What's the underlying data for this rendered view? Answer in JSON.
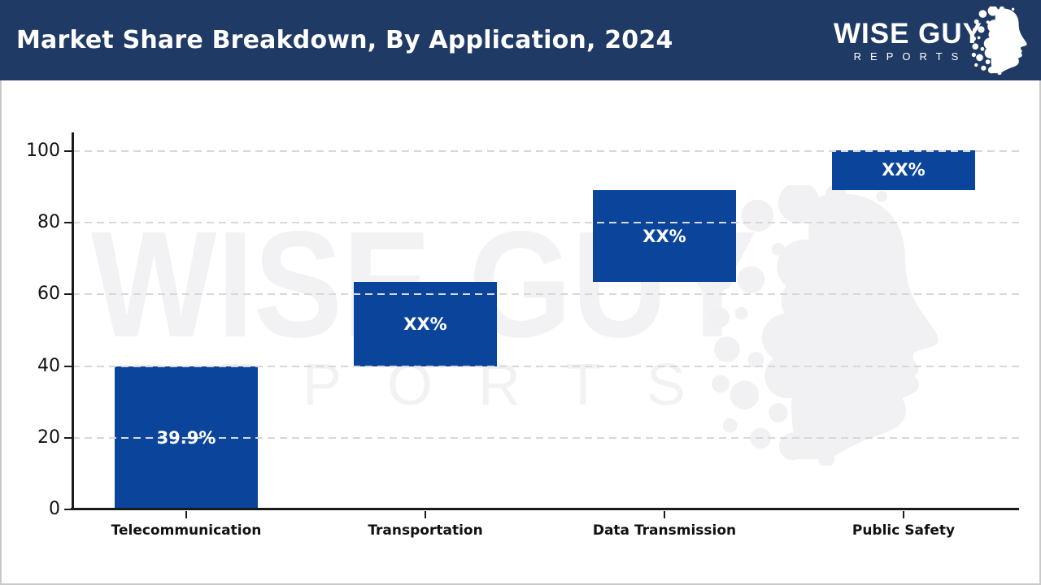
{
  "header": {
    "title": "Market Share Breakdown, By Application, 2024",
    "logo": {
      "line1": "WISE GUY",
      "line2": "REPORTS"
    }
  },
  "watermark": {
    "line1": "WISE GUY",
    "line2": "REPORTS"
  },
  "chart_data": {
    "type": "bar",
    "subtype": "waterfall",
    "title": "Market Share Breakdown, By Application, 2024",
    "categories": [
      "Telecommunication",
      "Transportation",
      "Data Transmission",
      "Public Safety"
    ],
    "segments": [
      [
        0,
        39.9
      ],
      [
        39.9,
        63.4
      ],
      [
        63.4,
        89.2
      ],
      [
        89.2,
        100.3
      ]
    ],
    "bar_labels": [
      "39.9%",
      "XX%",
      "XX%",
      "XX%"
    ],
    "yticks": [
      0,
      20,
      40,
      60,
      80,
      100
    ],
    "ylim": [
      0,
      105
    ],
    "xlabel": "",
    "ylabel": "",
    "grid": "horizontal-dashed",
    "legend": "none",
    "bar_color": "#0a449b",
    "label_color": "#ffffff"
  },
  "colors": {
    "header_bg": "#203a66",
    "bar_blue": "#0a449b",
    "watermark_gray": "#f2f2f4",
    "grid_gray": "#d8d8d8"
  }
}
